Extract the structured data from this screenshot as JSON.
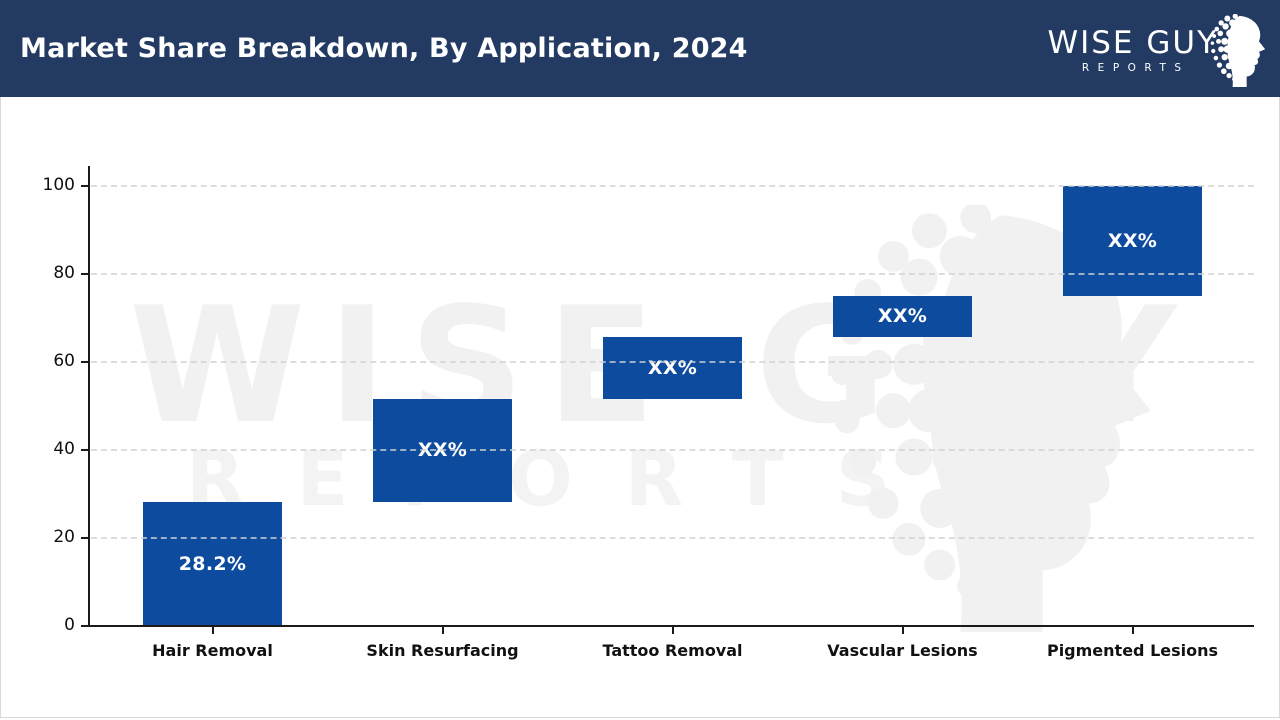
{
  "header": {
    "title": "Market Share Breakdown, By Application, 2024",
    "logo": {
      "line1": "WISE GUY",
      "line2": "REPORTS"
    }
  },
  "watermark": {
    "line1": "WISE GUY",
    "line2": "REPORTS"
  },
  "colors": {
    "header_bg": "#233a63",
    "bar": "#0d4b9e",
    "bar_label": "#ffffff",
    "grid": "#d9d9d9",
    "axis": "#1a1a1a",
    "watermark": "#f1f1f1"
  },
  "chart_data": {
    "type": "bar",
    "subtype": "waterfall",
    "title": "Market Share Breakdown, By Application, 2024",
    "xlabel": "",
    "ylabel": "",
    "categories": [
      "Hair Removal",
      "Skin Resurfacing",
      "Tattoo Removal",
      "Vascular Lesions",
      "Pigmented Lesions"
    ],
    "segments": [
      {
        "label": "28.2%",
        "start": 0,
        "end": 28.2
      },
      {
        "label": "XX%",
        "start": 28.2,
        "end": 51.6
      },
      {
        "label": "XX%",
        "start": 51.6,
        "end": 65.7
      },
      {
        "label": "XX%",
        "start": 65.7,
        "end": 75.0
      },
      {
        "label": "XX%",
        "start": 75.0,
        "end": 100
      }
    ],
    "ylim": [
      0,
      100
    ],
    "yticks": [
      0,
      20,
      40,
      60,
      80,
      100
    ],
    "grid": true,
    "legend": false
  }
}
